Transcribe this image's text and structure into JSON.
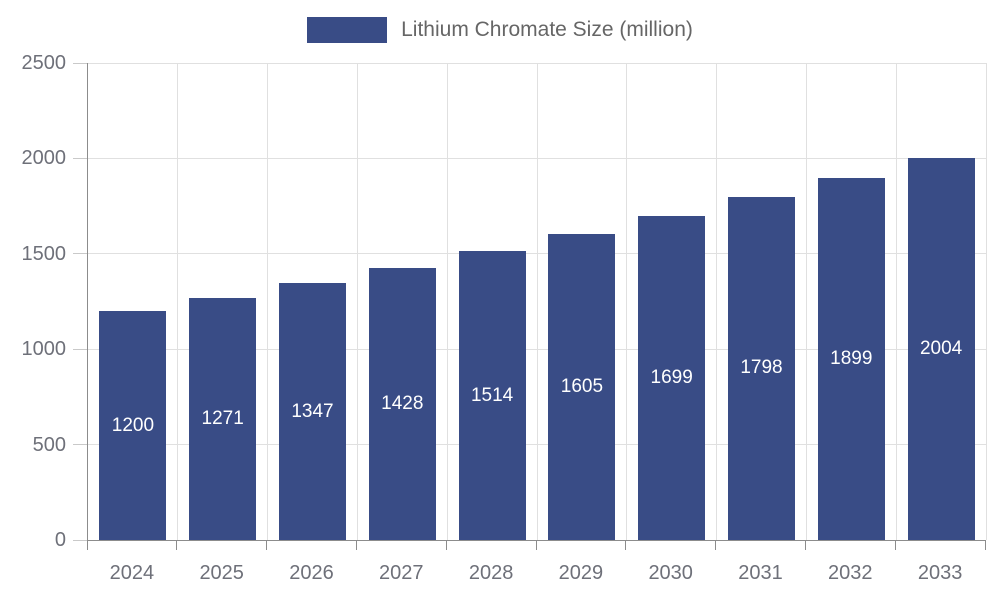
{
  "chart_data": {
    "type": "bar",
    "title": "",
    "xlabel": "",
    "ylabel": "",
    "categories": [
      "2024",
      "2025",
      "2026",
      "2027",
      "2028",
      "2029",
      "2030",
      "2031",
      "2032",
      "2033"
    ],
    "series": [
      {
        "name": "Lithium Chromate Size (million)",
        "values": [
          1200,
          1271,
          1347,
          1428,
          1514,
          1605,
          1699,
          1798,
          1899,
          2004
        ]
      }
    ],
    "ylim": [
      0,
      2500
    ],
    "ytick_step": 500,
    "ytick_labels": [
      "0",
      "500",
      "1000",
      "1500",
      "2000",
      "2500"
    ],
    "grid": true,
    "legend_position": "top-center",
    "bar_label_position": "inside-center",
    "colors": {
      "bar": "#394C86",
      "bar_label": "#FFFFFF",
      "axis_text": "#6E7079",
      "legend_text": "#666666",
      "grid_line": "#E0E0E0",
      "y_tick": "#C9C9C9",
      "axis_line": "#8C8C8C"
    }
  }
}
